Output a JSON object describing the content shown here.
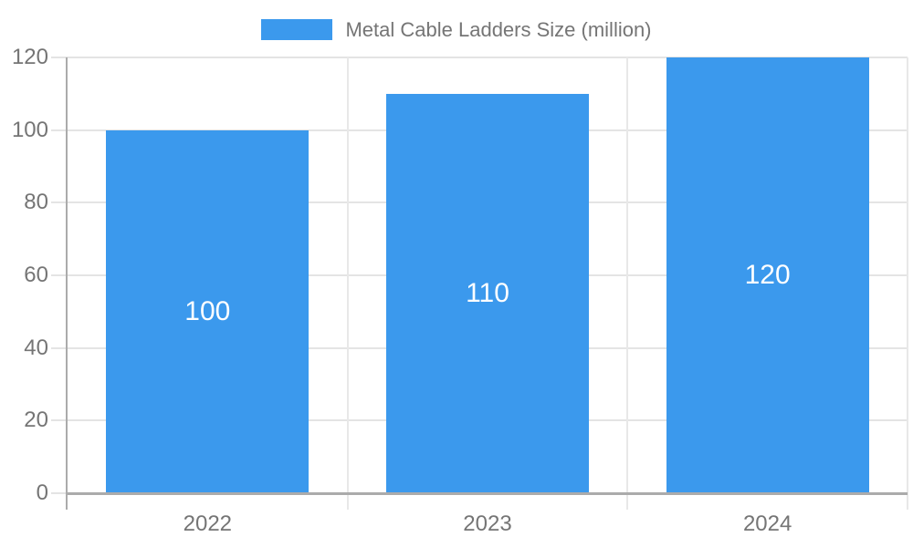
{
  "chart_data": {
    "type": "bar",
    "title": "Metal Cable Ladders Size (million)",
    "legend_position": "top",
    "categories": [
      "2022",
      "2023",
      "2024"
    ],
    "series": [
      {
        "name": "Metal Cable Ladders Size (million)",
        "values": [
          100,
          110,
          120
        ],
        "data_labels": [
          "100",
          "110",
          "120"
        ]
      }
    ],
    "xlabel": "",
    "ylabel": "",
    "ylim": [
      0,
      120
    ],
    "yticks": [
      0,
      20,
      40,
      60,
      80,
      100,
      120
    ],
    "grid": true,
    "colors": {
      "bar": "#3B99ED",
      "data_label_text": "#FFFFFF",
      "axis_text": "#757575",
      "legend_text": "#757575",
      "axis_line": "#ABABAB",
      "gridline": "#E4E4E4",
      "separator": "#E8E8E8",
      "background": "#FFFFFF"
    }
  }
}
